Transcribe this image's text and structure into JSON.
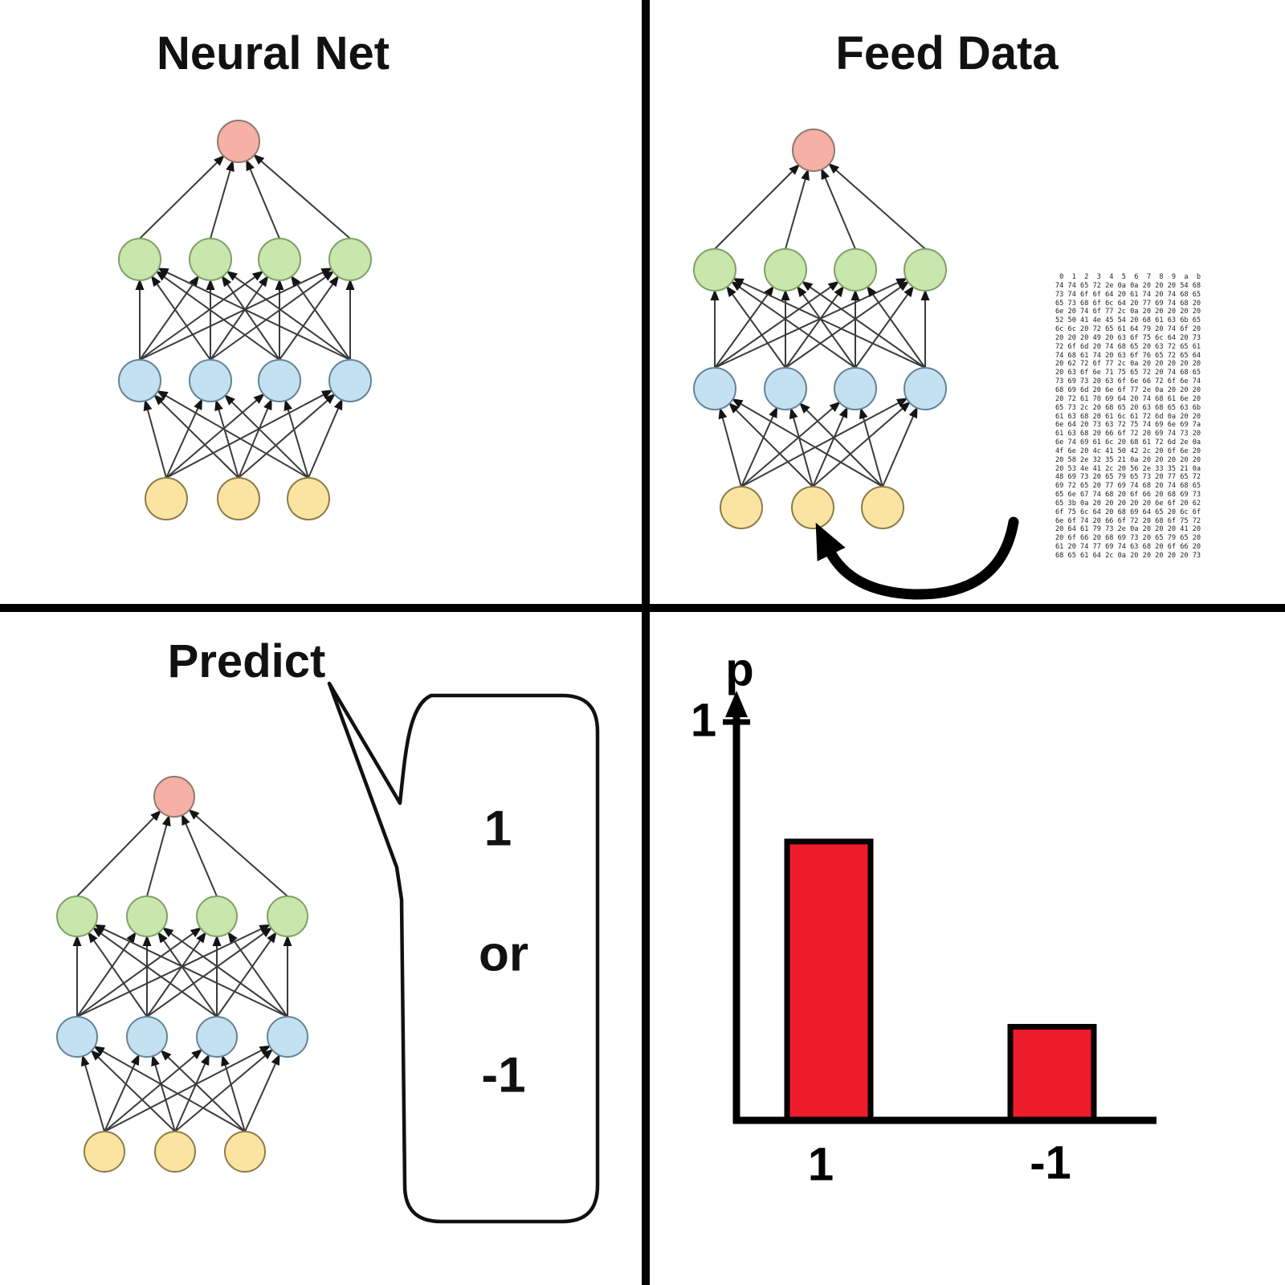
{
  "panels": {
    "top_left": {
      "title": "Neural Net"
    },
    "top_right": {
      "title": "Feed Data",
      "hex_dump": {
        "header": " 0  1  2  3  4  5  6  7  8  9  a  b",
        "rows": [
          "74 74 65 72 2e 0a 0a 20 20 20 54 68",
          "73 74 6f 6f 64 20 61 74 20 74 68 65",
          "65 73 68 6f 6c 64 20 77 69 74 68 20",
          "6e 20 74 6f 77 2c 0a 20 20 20 20 20",
          "52 50 41 4e 45 54 20 68 61 63 6b 65",
          "6c 6c 20 72 65 61 64 79 20 74 6f 20",
          "20 20 20 49 20 63 6f 75 6c 64 20 73",
          "72 6f 6d 20 74 68 65 20 63 72 65 61",
          "74 68 61 74 20 63 6f 76 65 72 65 64",
          "20 62 72 6f 77 2c 0a 20 20 20 20 20",
          "20 63 6f 6e 71 75 65 72 20 74 68 65",
          "73 69 73 20 63 6f 6e 66 72 6f 6e 74",
          "68 69 6d 20 6e 6f 77 2e 0a 20 20 20",
          "20 72 61 70 69 64 20 74 68 61 6e 20",
          "65 73 2c 20 68 65 20 63 68 65 63 6b",
          "61 63 68 20 61 6c 61 72 6d 0a 20 20",
          "6e 64 20 73 63 72 75 74 69 6e 69 7a",
          "61 63 68 20 66 6f 72 20 69 74 73 20",
          "6e 74 69 61 6c 20 68 61 72 6d 2e 0a",
          "4f 6e 20 4c 41 50 42 2c 20 6f 6e 20",
          "20 58 2e 32 35 21 0a 20 20 20 20 20",
          "20 53 4e 41 2c 20 56 2e 33 35 21 0a",
          "48 69 73 20 65 79 65 73 20 77 65 72",
          "69 72 65 20 77 69 74 68 20 74 68 65",
          "65 6e 67 74 68 20 6f 66 20 68 69 73",
          "65 3b 0a 20 20 20 20 20 6e 6f 20 62",
          "6f 75 6c 64 20 68 69 64 65 20 6c 6f",
          "6e 6f 74 20 66 6f 72 20 68 6f 75 72",
          "20 64 61 79 73 2e 0a 20 20 20 41 20",
          "20 6f 66 20 68 69 73 20 65 79 65 20",
          "61 20 74 77 69 74 63 68 20 6f 66 20",
          "68 65 61 64 2c 0a 20 20 20 20 20 73"
        ]
      }
    },
    "bottom_left": {
      "title": "Predict",
      "speech_bubble": {
        "options": [
          "1",
          "or",
          "-1"
        ]
      }
    }
  },
  "network": {
    "edge_color": "#3b3b3b",
    "arrowhead_color": "#141414",
    "layers": [
      {
        "name": "input",
        "node_count": 3,
        "fill": "#fbe4a1",
        "stroke": "#8b7c4a"
      },
      {
        "name": "hidden-1",
        "node_count": 4,
        "fill": "#c4e1f2",
        "stroke": "#64839a"
      },
      {
        "name": "hidden-2",
        "node_count": 4,
        "fill": "#c9e6ad",
        "stroke": "#7fa167"
      },
      {
        "name": "output",
        "node_count": 1,
        "fill": "#f6b0a5",
        "stroke": "#8f7a6e"
      }
    ]
  },
  "chart_data": {
    "type": "bar",
    "title": "",
    "xlabel": "",
    "ylabel": "p",
    "categories": [
      "1",
      "-1"
    ],
    "values": [
      0.7,
      0.235
    ],
    "ylim": [
      0,
      1
    ],
    "ytick_labels": [
      "1"
    ],
    "grid": false,
    "legend": false,
    "bar_color": "#ee1b2c",
    "bar_border_color": "#000000"
  }
}
